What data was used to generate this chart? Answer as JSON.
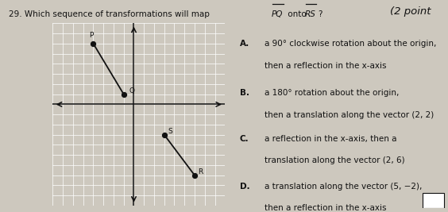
{
  "bg_color": "#cdc8be",
  "grid_bg": "#e8e3d8",
  "grid_line_color": "#ffffff",
  "axis_color": "#111111",
  "line_color": "#111111",
  "dot_color": "#111111",
  "text_color": "#111111",
  "grid_xlim": [
    -8,
    9
  ],
  "grid_ylim": [
    -10,
    8
  ],
  "P": [
    -4,
    6
  ],
  "Q": [
    -1,
    1
  ],
  "S": [
    3,
    -3
  ],
  "R": [
    6,
    -7
  ],
  "P_label": "P",
  "Q_label": "Q",
  "S_label": "S",
  "R_label": "R",
  "title_prefix": "29. Which sequence of transformations will map ",
  "title_pq": "PQ",
  "title_mid": " onto ",
  "title_rs": "RS",
  "title_end": "?",
  "points_text": "(2 point",
  "answer_A_letter": "A.",
  "answer_A_line1": "a 90° clockwise rotation about the origin,",
  "answer_A_line2": "then a reflection in the x-axis",
  "answer_B_letter": "B.",
  "answer_B_line1": "a 180° rotation about the origin,",
  "answer_B_line2": "then a translation along the vector (2, 2)",
  "answer_C_letter": "C.",
  "answer_C_line1": "a reflection in the x-axis, then a",
  "answer_C_line2": "translation along the vector (2, 6)",
  "answer_D_letter": "D.",
  "answer_D_line1": "a translation along the vector (5, −2),",
  "answer_D_line2": "then a reflection in the x-axis",
  "font_size_title": 7.5,
  "font_size_answers": 7.5,
  "font_size_points": 9.5,
  "font_size_labels": 6.5
}
